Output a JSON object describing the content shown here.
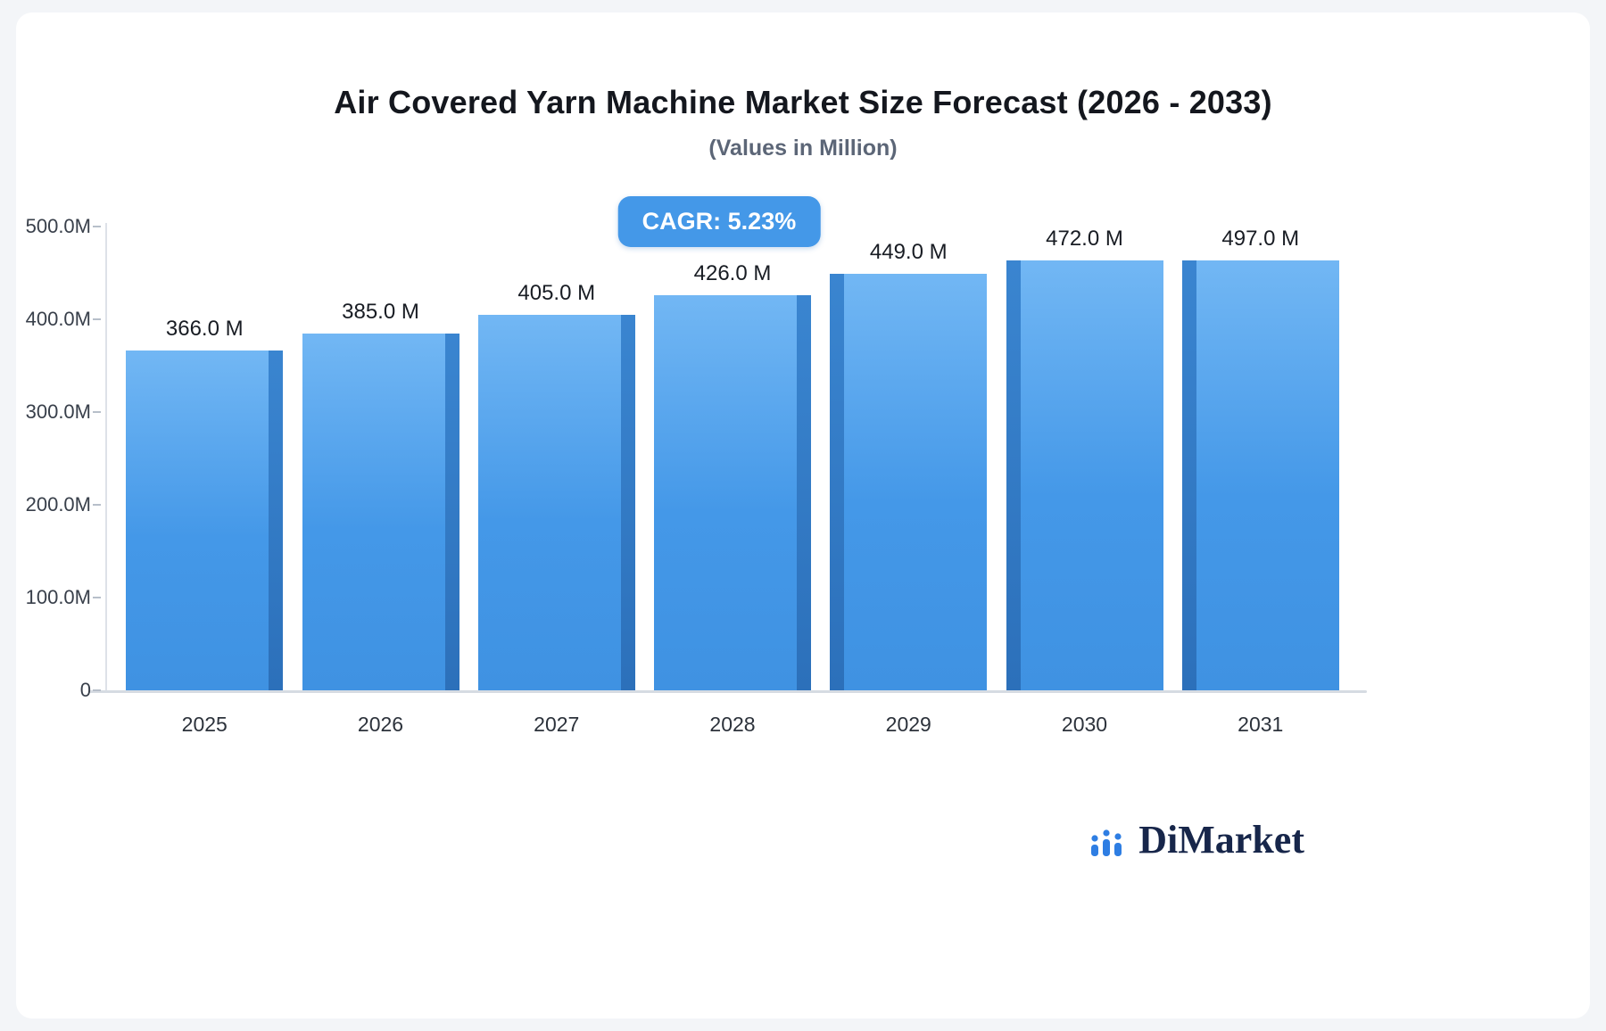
{
  "page": {
    "background": "#f3f5f8",
    "card_background": "#ffffff"
  },
  "chart_data": {
    "type": "bar",
    "title": "Air Covered Yarn Machine Market Size Forecast (2026 - 2033)",
    "subtitle": "(Values in Million)",
    "cagr_label": "CAGR: 5.23%",
    "categories": [
      "2025",
      "2026",
      "2027",
      "2028",
      "2029",
      "2030",
      "2031"
    ],
    "values": [
      366.0,
      385.0,
      405.0,
      426.0,
      449.0,
      472.0,
      497.0
    ],
    "value_labels": [
      "366.0 M",
      "385.0 M",
      "405.0 M",
      "426.0 M",
      "449.0 M",
      "472.0 M",
      "497.0 M"
    ],
    "y_ticks": [
      "500.0M",
      "400.0M",
      "300.0M",
      "200.0M",
      "100.0M",
      "0"
    ],
    "ylim": [
      0,
      500
    ],
    "xlabel": "",
    "ylabel": "",
    "grid": false,
    "legend": false,
    "bar_color": "#4498e8",
    "bar_color_dark": "#2c70ba",
    "accent_color": "#4498e8"
  },
  "branding": {
    "logo_text": "DiMarket",
    "logo_color": "#17264a",
    "logo_icon": "bar-chart-icon",
    "logo_icon_color": "#2e7ee3"
  }
}
